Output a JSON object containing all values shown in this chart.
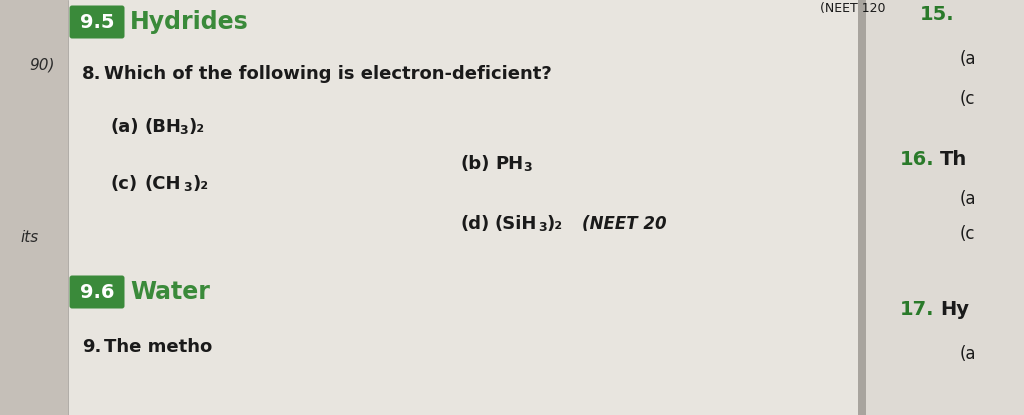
{
  "bg_color": "#b8b4ae",
  "page_bg": "#e8e5df",
  "page_bg_inner": "#edeae4",
  "section_badge_color": "#3a8a3a",
  "section_badge_text_color": "#ffffff",
  "section_number_95": "9.5",
  "section_title_95": "Hydrides",
  "section_number_96": "9.6",
  "section_title_96": "Water",
  "question_number": "8.",
  "question_text": "Which of the following is electron-deficient?",
  "option_a_label": "(a)",
  "option_b_label": "(b)",
  "option_c_label": "(c)",
  "option_d_label": "(d)",
  "option_a_main": "(BH",
  "option_a_sub": "3",
  "option_a_suffix": ")₂",
  "option_b_main": "PH",
  "option_b_sub": "3",
  "option_c_main": "(CH",
  "option_c_sub": "3",
  "option_c_suffix": ")₂",
  "option_d_main": "(SiH",
  "option_d_sub": "3",
  "option_d_suffix": ")₂",
  "neet_tag": "(NEET 20",
  "left_margin_text_top": "90)",
  "left_margin_text_mid": "its",
  "right_num_top": "15.",
  "right_num_mid": "16.",
  "right_text_mid": "Th",
  "right_labels_mid": [
    "(a",
    "(c"
  ],
  "right_num_bot": "17.",
  "right_text_bot": "Hy",
  "bottom_q": "9.",
  "bottom_text": "The metho",
  "title_color": "#3a8a3a",
  "text_color": "#1a1a1a",
  "side_green": "#2a7a2a",
  "margin_bg": "#c5bfb8",
  "right_margin_bg": "#d0ccc6",
  "right_page_bg": "#dedad4"
}
